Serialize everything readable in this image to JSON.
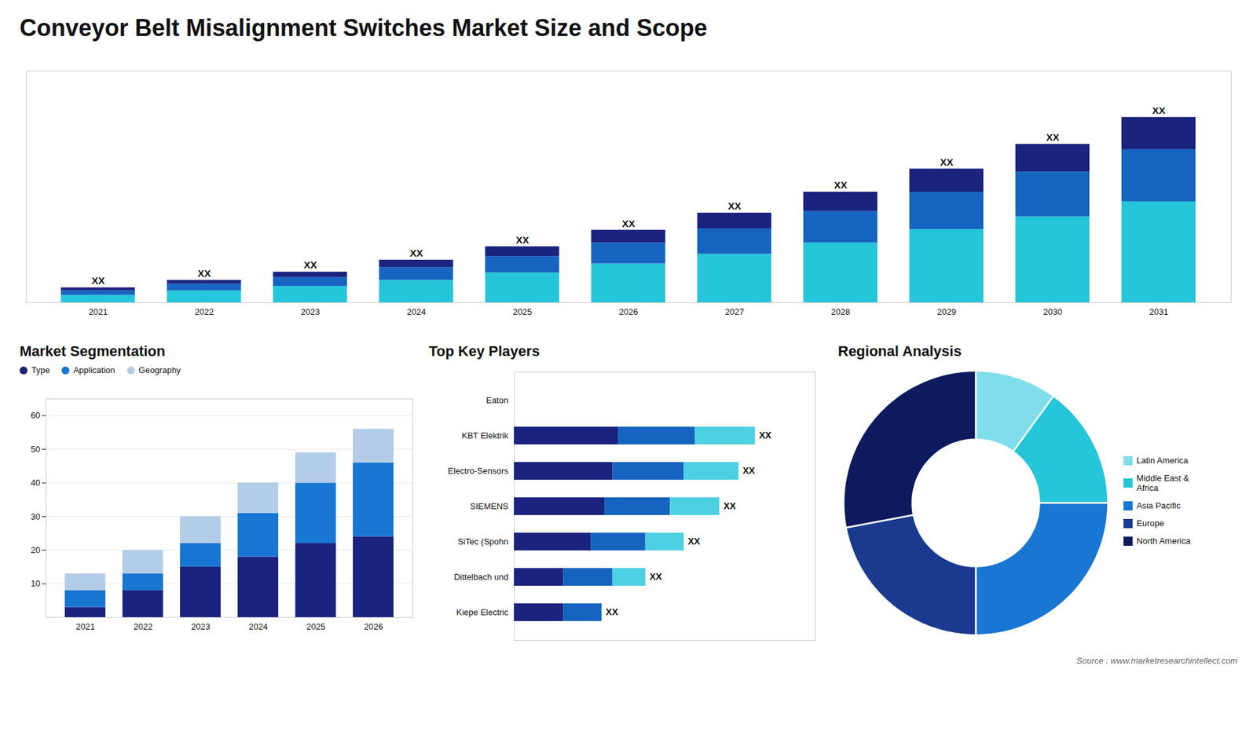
{
  "title": "Conveyor Belt Misalignment Switches Market Size and Scope",
  "annotations": [
    "Source : www.marketresearchintellect.com"
  ],
  "chart_data": [
    {
      "type": "bar",
      "categories": [
        "2021",
        "2022",
        "2023",
        "2024",
        "2025",
        "2026",
        "2027",
        "2028",
        "2029",
        "2030",
        "2031"
      ],
      "series": [
        {
          "color": "#26c6da",
          "values": [
            1.0,
            1.6,
            2.2,
            3.0,
            4.0,
            5.2,
            6.5,
            8.0,
            9.8,
            11.5,
            13.5
          ]
        },
        {
          "color": "#1565c0",
          "values": [
            0.6,
            0.9,
            1.2,
            1.7,
            2.2,
            2.8,
            3.4,
            4.2,
            5.0,
            6.0,
            7.0
          ]
        },
        {
          "color": "#1a237e",
          "values": [
            0.4,
            0.5,
            0.7,
            1.0,
            1.3,
            1.7,
            2.1,
            2.6,
            3.1,
            3.7,
            4.3
          ]
        }
      ],
      "stacked": true,
      "ylim": [
        0,
        31
      ],
      "tick_labels": "x",
      "annotations": [
        "XX",
        "XX",
        "XX",
        "XX",
        "XX",
        "XX",
        "XX",
        "XX",
        "XX",
        "XX",
        "XX"
      ]
    },
    {
      "type": "bar",
      "title": "Market Segmentation",
      "categories": [
        "2021",
        "2022",
        "2023",
        "2024",
        "2025",
        "2026"
      ],
      "series": [
        {
          "name": "Type",
          "color": "#1a237e",
          "values": [
            3,
            8,
            15,
            18,
            22,
            24
          ]
        },
        {
          "name": "Application",
          "color": "#1976d2",
          "values": [
            5,
            5,
            7,
            13,
            18,
            22
          ]
        },
        {
          "name": "Geography",
          "color": "#b3cde8",
          "values": [
            5,
            7,
            8,
            9,
            9,
            10
          ]
        }
      ],
      "stacked": true,
      "ylim": [
        0,
        65
      ],
      "yticks": [
        10,
        20,
        30,
        40,
        50,
        60
      ],
      "grid": true,
      "legend": "upper left"
    },
    {
      "type": "bar",
      "title": "Top Key Players",
      "orientation": "horizontal",
      "categories": [
        "Eaton",
        "KBT Elektrik",
        "Electro-Sensors",
        "SIEMENS",
        "SiTec (Spohn",
        "Dittelbach und",
        "Kiepe Electric"
      ],
      "series": [
        {
          "color": "#1a237e",
          "values": [
            0,
            0.38,
            0.36,
            0.33,
            0.28,
            0.18,
            0.18
          ]
        },
        {
          "color": "#1565c0",
          "values": [
            0,
            0.28,
            0.26,
            0.24,
            0.2,
            0.18,
            0.14
          ]
        },
        {
          "color": "#4dd0e1",
          "values": [
            0,
            0.22,
            0.2,
            0.18,
            0.14,
            0.12,
            0.0
          ]
        }
      ],
      "stacked": true,
      "xlim": [
        0,
        1.1
      ],
      "tick_labels": "y",
      "annotations": [
        null,
        "XX",
        "XX",
        "XX",
        "XX",
        "XX",
        "XX"
      ]
    },
    {
      "type": "pie",
      "title": "Regional Analysis",
      "categories": [
        "Latin America",
        "Middle East &\nAfrica",
        "Asia Pacific",
        "Europe",
        "North America"
      ],
      "values": [
        10,
        15,
        25,
        22,
        28
      ],
      "colors": [
        "#80deea",
        "#26c6da",
        "#1976d2",
        "#1a3a8f",
        "#0d1b5e"
      ],
      "legend": "right"
    }
  ]
}
